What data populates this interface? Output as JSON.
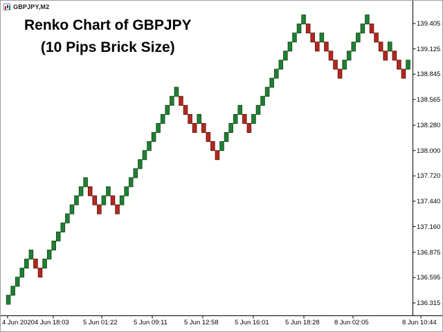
{
  "window": {
    "symbol_label": "GBPJPY,M2"
  },
  "title": {
    "line1": "Renko Chart of GBPJPY",
    "line2": "(10 Pips Brick Size)"
  },
  "chart_data": {
    "type": "renko",
    "title": "Renko Chart of GBPJPY (10 Pips Brick Size)",
    "symbol": "GBPJPY",
    "timeframe_label": "M2",
    "brick_size_pips": 10,
    "brick_size_price": 0.1,
    "start_price": 136.3,
    "bricks": "UUUUUUDDUUUUUUUUUUDDDUUDDUUUUUUUUUUUUUDDDDUDDDDUUUUUDDUUUUUUUUUUUUDDDUDDDDUUUUUUDDDDUDDDU",
    "bricks_legend": {
      "U": "up brick (+10 pips)",
      "D": "down brick (-10 pips)"
    },
    "y_axis": {
      "tick_labels": [
        "139.405",
        "139.125",
        "138.845",
        "138.565",
        "138.280",
        "138.000",
        "137.720",
        "137.440",
        "137.160",
        "136.875",
        "136.595",
        "136.315"
      ],
      "tick_values": [
        139.405,
        139.125,
        138.845,
        138.565,
        138.28,
        138.0,
        137.72,
        137.44,
        137.16,
        136.875,
        136.595,
        136.315
      ],
      "ylim": [
        136.25,
        139.55
      ],
      "position": "right"
    },
    "x_axis": {
      "tick_labels": [
        "4 Jun 2020",
        "4 Jun 18:03",
        "5 Jun 01:22",
        "5 Jun 09:11",
        "5 Jun 12:58",
        "5 Jun 16:01",
        "5 Jun 18:28",
        "8 Jun 02:05",
        "8 Jun 10:44"
      ]
    },
    "colors": {
      "up": "#1f8038",
      "up_border": "#145214",
      "down": "#b22a1e",
      "down_border": "#6e1410",
      "axis_line": "#000000",
      "background": "#ffffff",
      "text": "#000000"
    },
    "grid": false,
    "legend": false
  }
}
